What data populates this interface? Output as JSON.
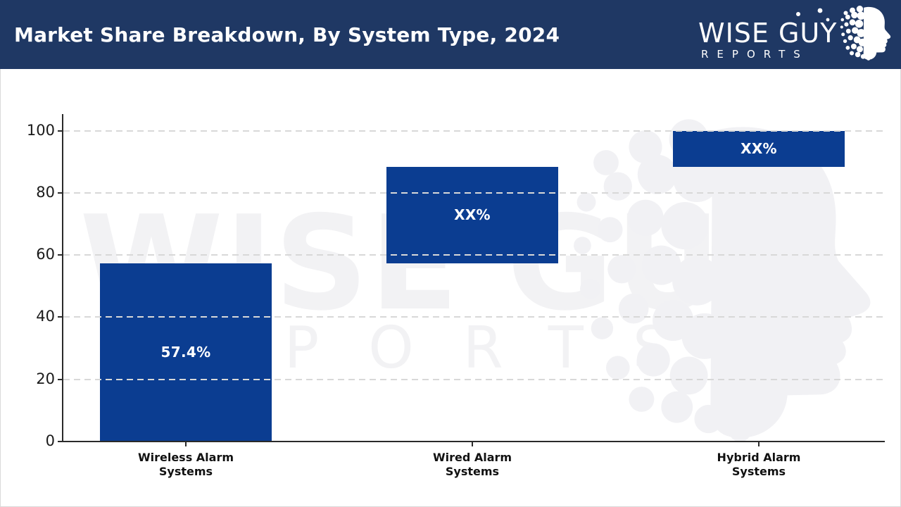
{
  "header": {
    "title": "Market Share Breakdown, By System Type, 2024",
    "logo": {
      "brand": "WISE GUY",
      "sub": "REPORTS"
    }
  },
  "watermark": {
    "brand": "WISE GUY",
    "sub": "REPORTS"
  },
  "chart_data": {
    "type": "bar",
    "subtype": "floating-segment-waterfall",
    "title": "Market Share Breakdown, By System Type, 2024",
    "categories": [
      [
        "Wireless Alarm",
        "Systems"
      ],
      [
        "Wired Alarm",
        "Systems"
      ],
      [
        "Hybrid Alarm",
        "Systems"
      ]
    ],
    "segments": [
      {
        "category": "Wireless Alarm Systems",
        "from": 0,
        "to": 57.4,
        "label": "57.4%"
      },
      {
        "category": "Wired Alarm Systems",
        "from": 57.4,
        "to": 88.3,
        "label": "XX%"
      },
      {
        "category": "Hybrid Alarm Systems",
        "from": 88.3,
        "to": 100,
        "label": "XX%"
      }
    ],
    "ylim": [
      0,
      100
    ],
    "yticks": [
      0,
      20,
      40,
      60,
      80,
      100
    ],
    "grid": {
      "horizontal": true,
      "style": "dashed",
      "above_bars": true
    },
    "legend": null,
    "bar_color": "#0b3d91",
    "bar_label_color": "#ffffff"
  },
  "colors": {
    "header_bg": "#1f3864",
    "header_text": "#ffffff",
    "bar_blue": "#0b3d91",
    "bar_label": "#ffffff",
    "watermark_gray": "#f2f2f4",
    "grid_gray": "#d8d8d8",
    "axis_dark": "#2a2a2a"
  }
}
